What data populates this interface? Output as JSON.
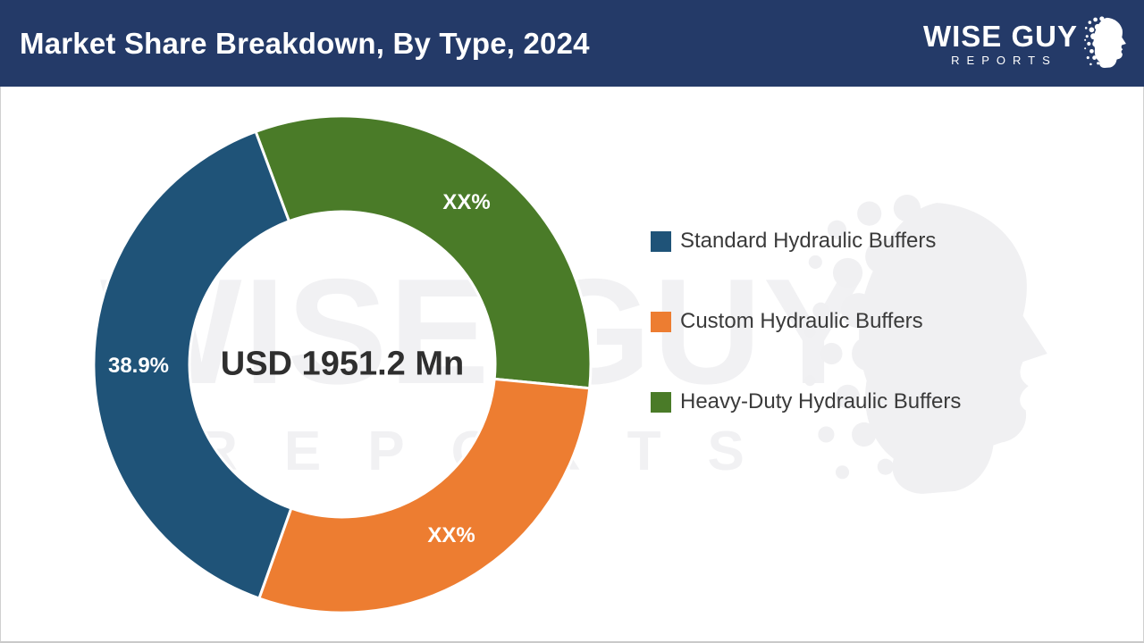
{
  "header": {
    "title": "Market Share Breakdown, By Type, 2024",
    "logo": {
      "line1": "WISE GUY",
      "line2": "REPORTS"
    }
  },
  "watermark": {
    "line1": "WISE GUY",
    "line2": "REPORTS"
  },
  "chart_data": {
    "type": "pie",
    "subtype": "donut",
    "title": "Market Share Breakdown, By Type, 2024",
    "center_label": "USD 1951.2 Mn",
    "start_angle_deg": -20.4,
    "legend_position": "right",
    "segments": [
      {
        "name": "Heavy-Duty Hydraulic Buffers",
        "value": 32.2,
        "display_label": "XX%",
        "color": "#4A7B28"
      },
      {
        "name": "Custom Hydraulic Buffers",
        "value": 28.9,
        "display_label": "XX%",
        "color": "#ED7D31"
      },
      {
        "name": "Standard Hydraulic Buffers",
        "value": 38.9,
        "display_label": "38.9%",
        "color": "#1F5378"
      }
    ]
  },
  "colors": {
    "header_bg": "#243A68",
    "header_text": "#FFFFFF",
    "center_text": "#2F2F2F",
    "legend_text": "#3A3A3A",
    "slice_label_text": "#FFFFFF",
    "watermark": "#F1F1F3"
  }
}
